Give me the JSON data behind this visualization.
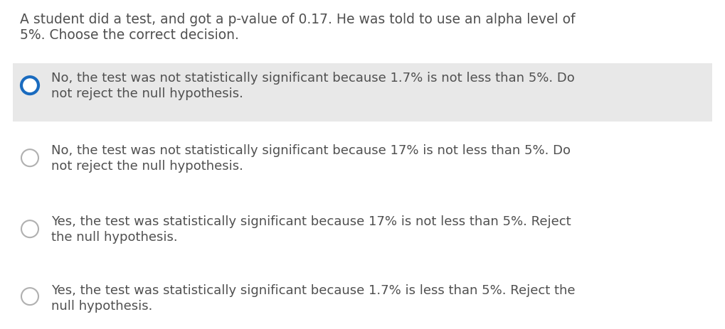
{
  "title_line1": "A student did a test, and got a p-value of 0.17. He was told to use an alpha level of",
  "title_line2": "5%. Choose the correct decision.",
  "title_color": "#505050",
  "title_fontsize": 13.5,
  "bg_color": "#ffffff",
  "options": [
    {
      "line1": "No, the test was not statistically significant because 1.7% is not less than 5%. Do",
      "line2": "not reject the null hypothesis.",
      "selected": true,
      "highlight": true
    },
    {
      "line1": "No, the test was not statistically significant because 17% is not less than 5%. Do",
      "line2": "not reject the null hypothesis.",
      "selected": false,
      "highlight": false
    },
    {
      "line1": "Yes, the test was statistically significant because 17% is not less than 5%. Reject",
      "line2": "the null hypothesis.",
      "selected": false,
      "highlight": false
    },
    {
      "line1": "Yes, the test was statistically significant because 1.7% is less than 5%. Reject the",
      "line2": "null hypothesis.",
      "selected": false,
      "highlight": false
    }
  ],
  "option_fontsize": 13.0,
  "text_color": "#505050",
  "selected_circle_color": "#1a6bbf",
  "unselected_circle_color": "#b0b0b0",
  "highlight_bg": "#e8e8e8"
}
